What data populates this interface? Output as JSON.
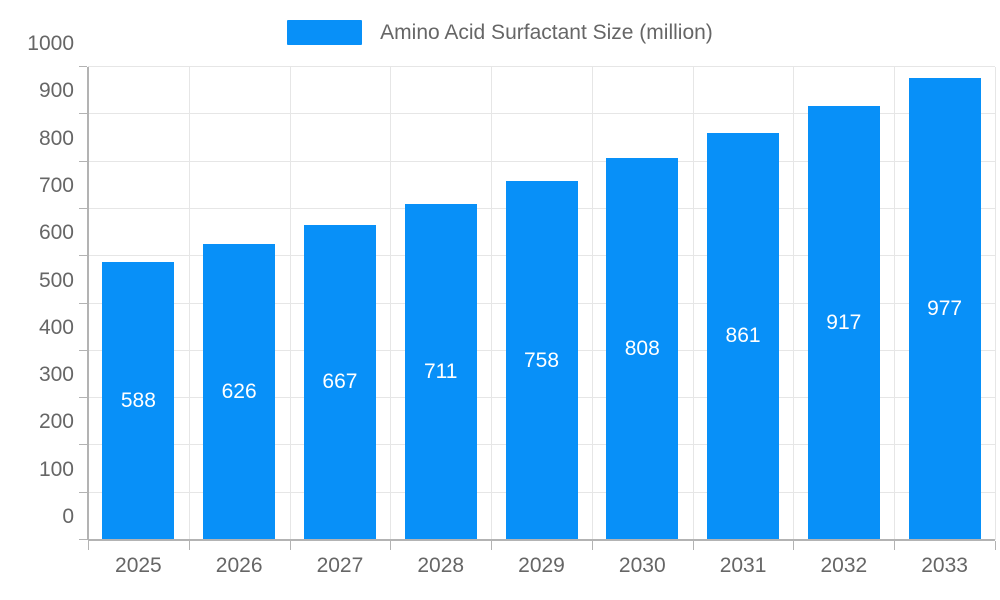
{
  "chart_data": {
    "type": "bar",
    "title": "",
    "legend_label": "Amino Acid Surfactant Size (million)",
    "legend_position": "top-center",
    "categories": [
      "2025",
      "2026",
      "2027",
      "2028",
      "2029",
      "2030",
      "2031",
      "2032",
      "2033"
    ],
    "series": [
      {
        "name": "Amino Acid Surfactant Size (million)",
        "values": [
          588,
          626,
          667,
          711,
          758,
          808,
          861,
          917,
          977
        ]
      }
    ],
    "bar_value_labels": [
      "588",
      "626",
      "667",
      "711",
      "758",
      "808",
      "861",
      "917",
      "977"
    ],
    "xlabel": "",
    "ylabel": "",
    "ylim": [
      0,
      1000
    ],
    "ytick_step": 100,
    "grid": "horizontal-and-vertical",
    "colors": {
      "bar": "#0890f8",
      "grid": "#e6e6e6",
      "axis": "#b3b3b3",
      "tick": "#b3b3b3",
      "axis_label": "#666666",
      "legend_text": "#666666",
      "bar_value_text": "#ffffff",
      "background": "#ffffff"
    }
  }
}
